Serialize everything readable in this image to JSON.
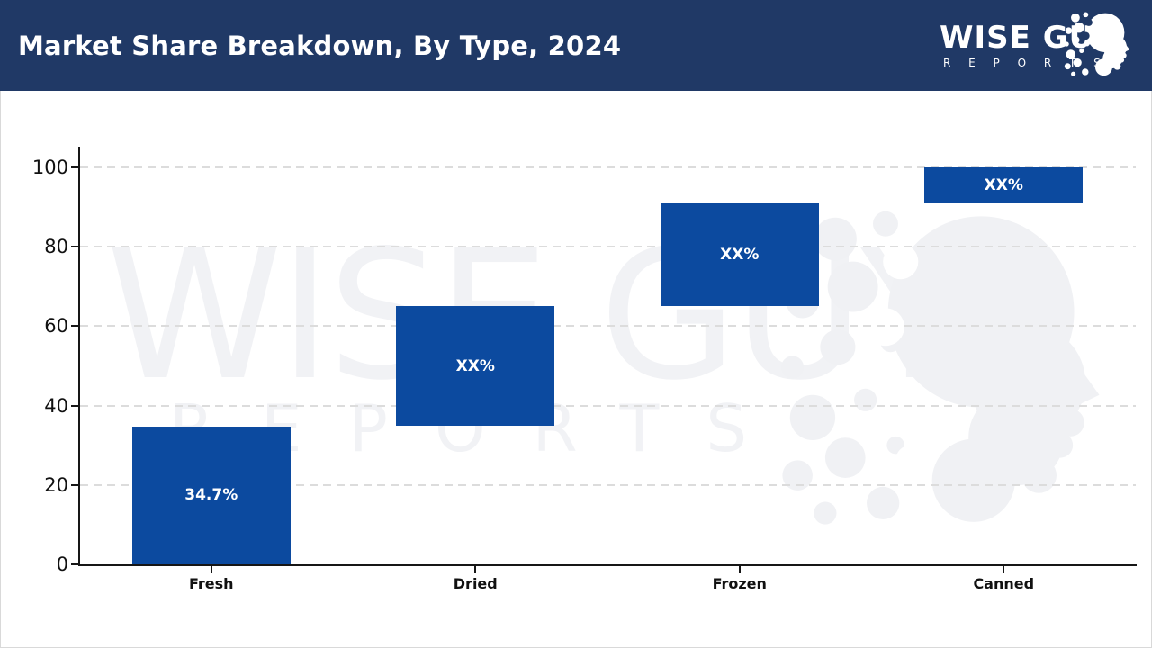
{
  "header": {
    "title": "Market Share Breakdown, By Type, 2024",
    "logo": {
      "name": "WISE GUY",
      "sub": "R E P O R T S"
    }
  },
  "watermark": {
    "text": "WISE GUY",
    "sub": "REPORTS"
  },
  "chart_data": {
    "type": "bar",
    "subtype": "floating-segment (waterfall-style market share breakdown)",
    "title": "Market Share Breakdown, By Type, 2024",
    "categories": [
      "Fresh",
      "Dried",
      "Frozen",
      "Canned"
    ],
    "bars": [
      {
        "category": "Fresh",
        "from": 0,
        "to": 34.7,
        "label": "34.7%"
      },
      {
        "category": "Dried",
        "from": 35,
        "to": 65,
        "label": "XX%"
      },
      {
        "category": "Frozen",
        "from": 65,
        "to": 91,
        "label": "XX%"
      },
      {
        "category": "Canned",
        "from": 91,
        "to": 100,
        "label": "XX%"
      }
    ],
    "xlabel": "",
    "ylabel": "",
    "ylim": [
      0,
      100
    ],
    "yticks": [
      0,
      20,
      40,
      60,
      80,
      100
    ],
    "grid": "horizontal dashed",
    "legend": "none",
    "colors": {
      "bar": "#0c4a9f",
      "header_band": "#203966",
      "gridline": "#dcdcdc",
      "axis": "#161616",
      "bar_label_text": "#ffffff",
      "watermark": "#f1f2f5"
    }
  }
}
